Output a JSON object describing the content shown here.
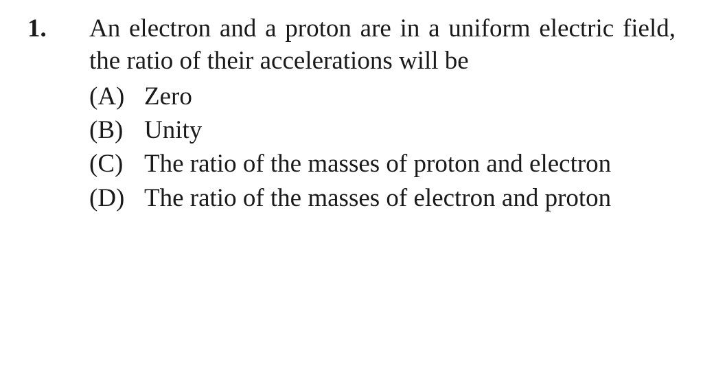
{
  "question": {
    "number": "1.",
    "stem": "An electron and a proton are in a uniform electric field, the ratio of their accelerations will be",
    "options": [
      {
        "label": "(A)",
        "text": "Zero"
      },
      {
        "label": "(B)",
        "text": "Unity"
      },
      {
        "label": "(C)",
        "text": "The ratio of the masses of proton and electron"
      },
      {
        "label": "(D)",
        "text": "The ratio of the masses of electron and proton"
      }
    ]
  },
  "style": {
    "font_family": "Times New Roman",
    "font_size_pt": 28,
    "text_color": "#1a1a1a",
    "background_color": "#ffffff",
    "number_weight": "bold"
  }
}
